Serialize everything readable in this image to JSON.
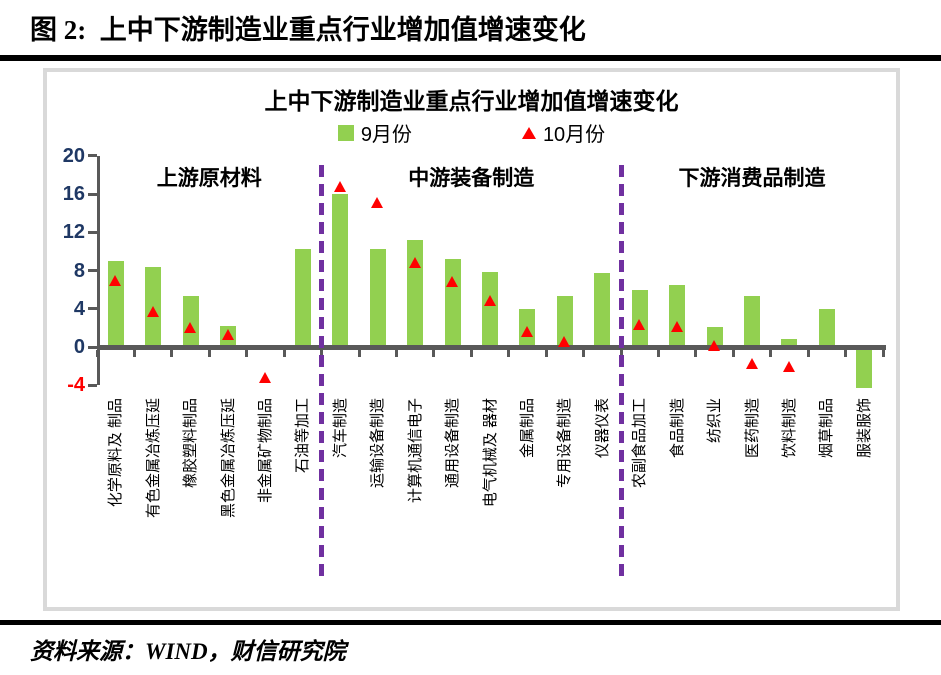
{
  "figure": {
    "caption": "图 2:  上中下游制造业重点行业增加值增速变化",
    "source": "资料来源：WIND，财信研究院"
  },
  "chart_data": {
    "type": "bar",
    "title": "上中下游制造业重点行业增加值增速变化",
    "grid": false,
    "legend_position": "top",
    "categories": [
      "化学原料及 制品",
      "有色金属冶炼压延",
      "橡胶塑料制品",
      "黑色金属冶炼压延",
      "非金属矿物制品",
      "石油等加工",
      "汽车制造",
      "运输设备制造",
      "计算机通信电子",
      "通用设备制造",
      "电气机械及 器材",
      "金属制品",
      "专用设备制造",
      "仪器仪表",
      "农副食品加工",
      "食品制造",
      "纺织业",
      "医药制造",
      "饮料制造",
      "烟草制品",
      "服装服饰"
    ],
    "series": [
      {
        "name": "9月份",
        "type": "bar",
        "color": "#92D050",
        "values": [
          9.0,
          8.4,
          5.3,
          2.2,
          0.2,
          10.3,
          16.0,
          10.2,
          11.2,
          9.2,
          7.8,
          4.0,
          5.3,
          7.7,
          6.0,
          6.5,
          2.1,
          5.3,
          0.8,
          4.0,
          -4.3
        ]
      },
      {
        "name": "10月份",
        "type": "scatter",
        "marker": "triangle",
        "color": "#FF0000",
        "values": [
          7.0,
          3.7,
          2.0,
          1.3,
          -3.2,
          null,
          16.8,
          15.1,
          8.8,
          6.9,
          4.9,
          1.6,
          0.6,
          null,
          2.4,
          2.1,
          0.2,
          -1.7,
          -2.0,
          null,
          null
        ]
      }
    ],
    "sections": [
      {
        "label": "上游原材料",
        "start": 0,
        "end": 5
      },
      {
        "label": "中游装备制造",
        "start": 6,
        "end": 13
      },
      {
        "label": "下游消费品制造",
        "start": 14,
        "end": 20
      }
    ],
    "y_axis": {
      "ticks": [
        20,
        16,
        12,
        8,
        4,
        0,
        -4
      ],
      "min": -4,
      "max": 20,
      "tick_color": "#1F3864",
      "negative_tick_color": "#FF0000"
    },
    "colors": {
      "bar": "#92D050",
      "marker": "#FF0000",
      "divider": "#7030A0",
      "axis": "#595959",
      "box_border": "#D9D9D9"
    }
  }
}
